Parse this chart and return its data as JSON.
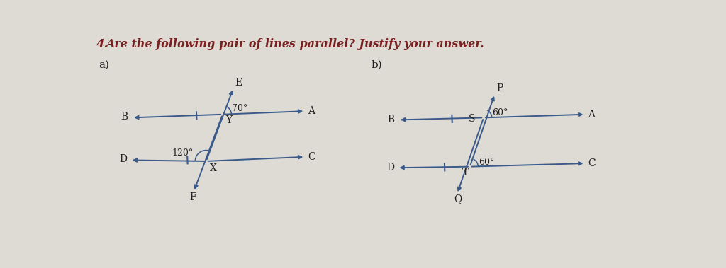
{
  "bg_color": "#dedad4",
  "line_color": "#3a5a8a",
  "text_color_red": "#7a2020",
  "text_color_dark": "#222222",
  "title": "Are the following pair of lines parallel? Justify your answer.",
  "question_num": "4.",
  "part_a_label": "a)",
  "part_b_label": "b)"
}
